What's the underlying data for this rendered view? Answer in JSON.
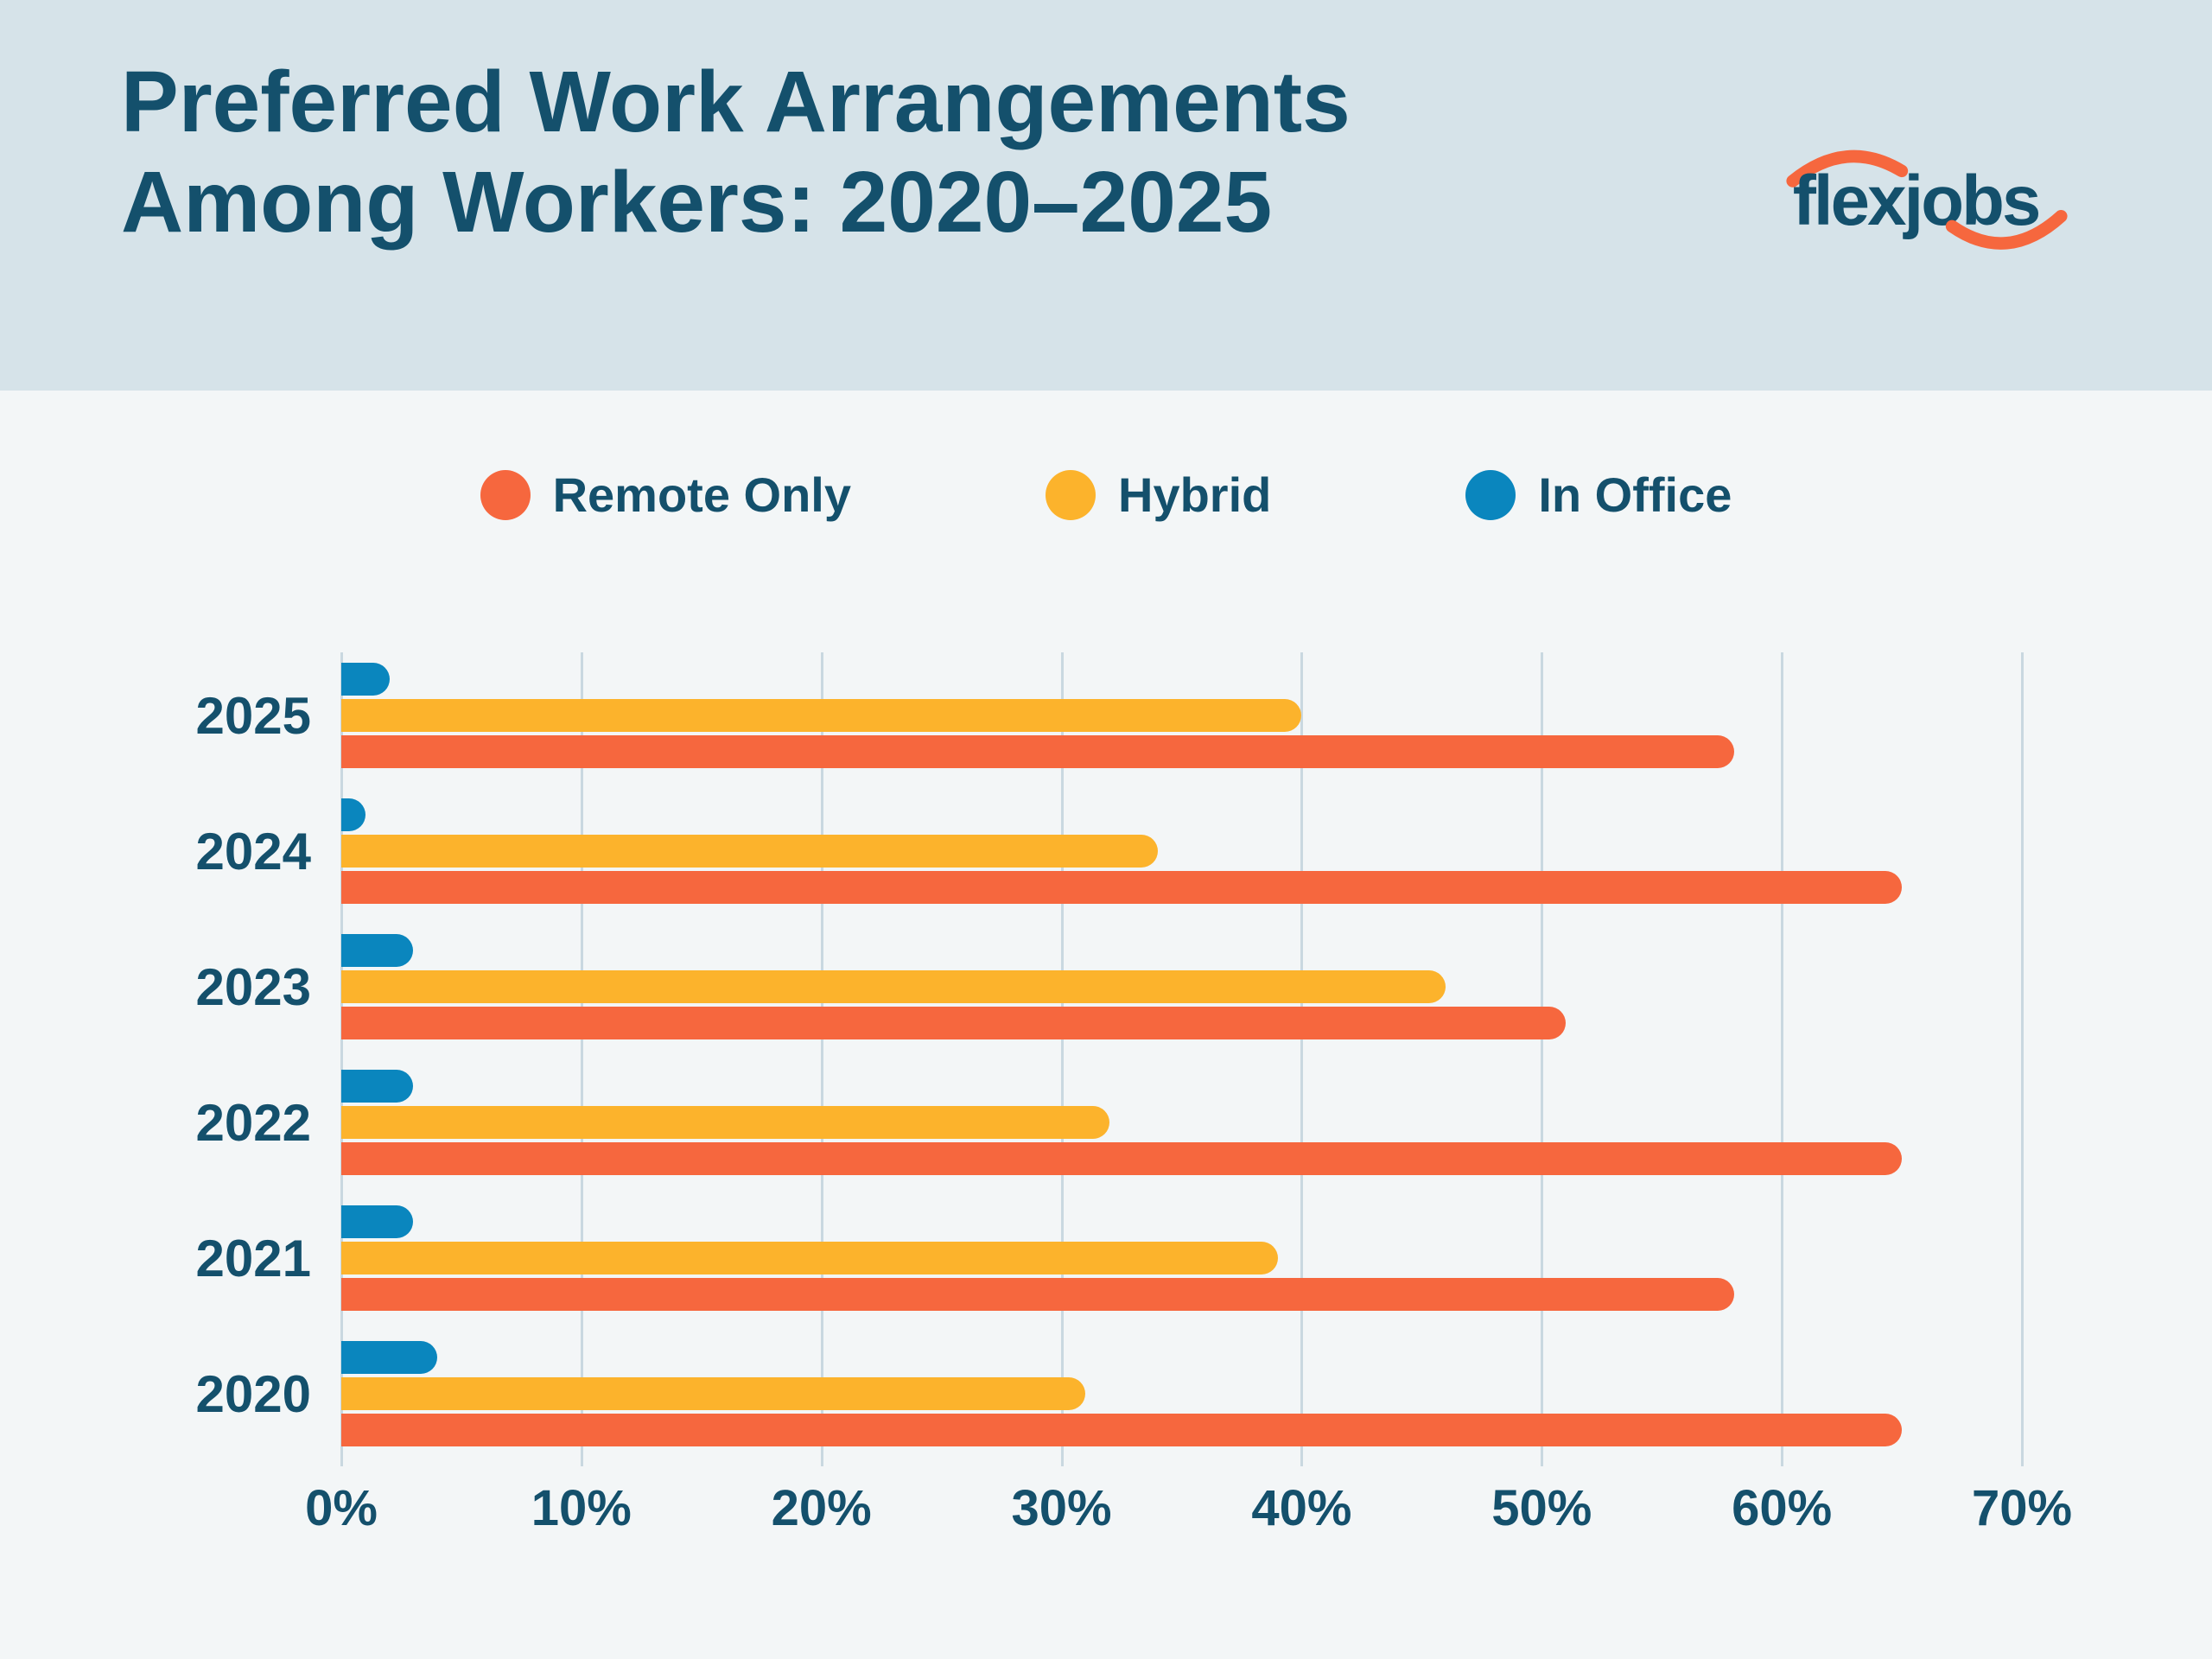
{
  "header": {
    "title_line1": "Preferred Work Arrangements",
    "title_line2": "Among Workers: 2020–2025",
    "logo_text": "flexjobs"
  },
  "colors": {
    "remote_only": "#F6673E",
    "hybrid": "#FCB32C",
    "in_office": "#0A86BE",
    "text_teal": "#14506C",
    "header_bg": "#D6E3E9",
    "body_bg": "#F3F6F7",
    "gridline": "#C9D8E0",
    "logo_arc_orange": "#F6673E"
  },
  "chart_data": {
    "type": "bar",
    "orientation": "horizontal",
    "title": "Preferred Work Arrangements Among Workers: 2020–2025",
    "categories": [
      "2025",
      "2024",
      "2023",
      "2022",
      "2021",
      "2020"
    ],
    "series": [
      {
        "name": "Remote Only",
        "color": "#F6673E",
        "values": [
          58,
          65,
          51,
          65,
          58,
          65
        ]
      },
      {
        "name": "Hybrid",
        "color": "#FCB32C",
        "values": [
          40,
          34,
          46,
          32,
          39,
          31
        ]
      },
      {
        "name": "In Office",
        "color": "#0A86BE",
        "values": [
          2,
          1,
          3,
          3,
          3,
          4
        ]
      }
    ],
    "row_order_top_to_bottom": [
      "In Office",
      "Hybrid",
      "Remote Only"
    ],
    "x_ticks": [
      "0%",
      "10%",
      "20%",
      "30%",
      "40%",
      "50%",
      "60%",
      "70%"
    ],
    "xlim": [
      0,
      70
    ],
    "grid": "vertical",
    "legend_position": "top"
  }
}
